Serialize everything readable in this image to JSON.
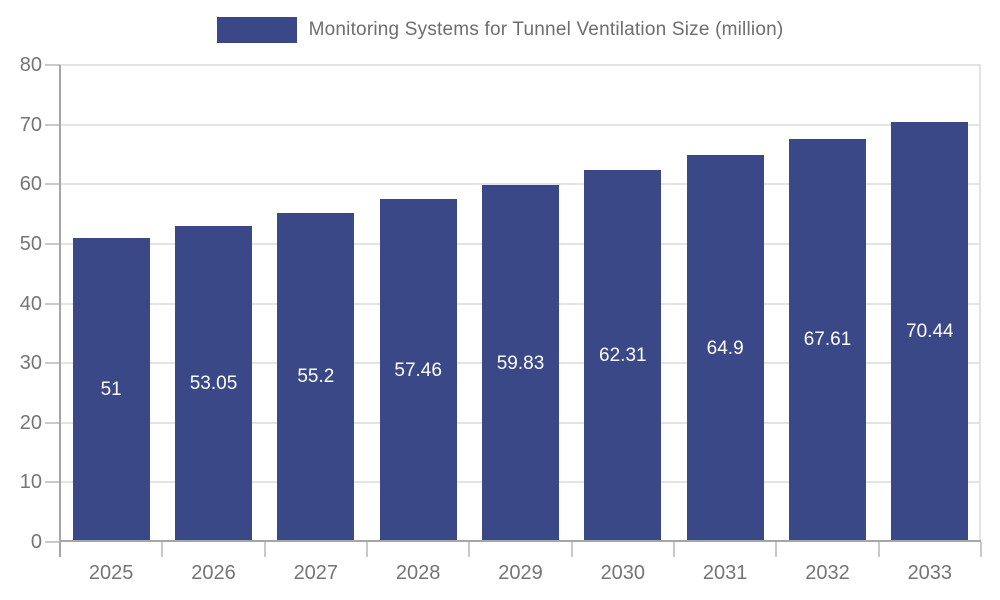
{
  "legend": {
    "label": "Monitoring Systems for Tunnel Ventilation Size (million)"
  },
  "chart_data": {
    "type": "bar",
    "title": "Monitoring Systems for Tunnel Ventilation Size (million)",
    "categories": [
      "2025",
      "2026",
      "2027",
      "2028",
      "2029",
      "2030",
      "2031",
      "2032",
      "2033"
    ],
    "values": [
      51,
      53.05,
      55.2,
      57.46,
      59.83,
      62.31,
      64.9,
      67.61,
      70.44
    ],
    "value_labels": [
      "51",
      "53.05",
      "55.2",
      "57.46",
      "59.83",
      "62.31",
      "64.9",
      "67.61",
      "70.44"
    ],
    "xlabel": "",
    "ylabel": "",
    "ylim": [
      0,
      80
    ],
    "ytick_step": 10,
    "grid": true,
    "legend_position": "top",
    "legend_entries": [
      "Monitoring Systems for Tunnel Ventilation Size (million)"
    ],
    "colors": {
      "bar": "#3A4887",
      "bar_label": "#ffffff",
      "gridline": "#e3e3e3",
      "axis_line": "#a6a6a6",
      "tick_mark": "#c9c9c9",
      "tick_label": "#757575",
      "title": "#6e6e6e",
      "background": "#ffffff"
    }
  }
}
